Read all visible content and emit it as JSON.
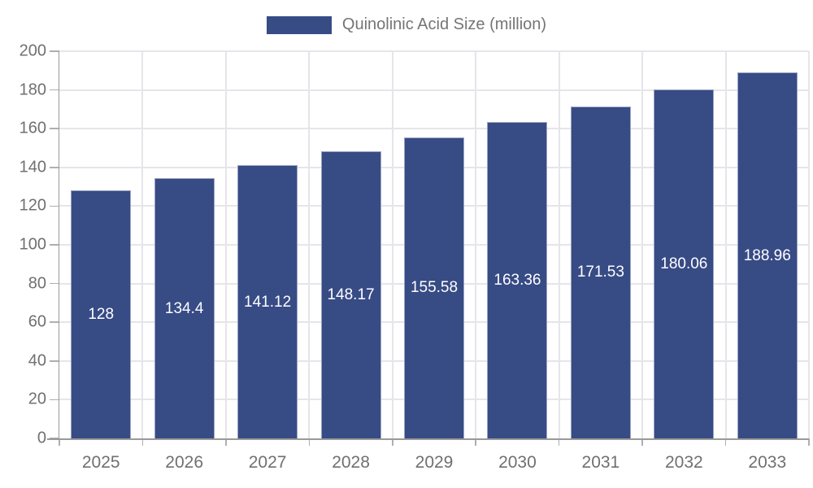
{
  "chart_data": {
    "type": "bar",
    "title": "",
    "xlabel": "",
    "ylabel": "",
    "legend_position": "top-center",
    "grid": true,
    "categories": [
      "2025",
      "2026",
      "2027",
      "2028",
      "2029",
      "2030",
      "2031",
      "2032",
      "2033"
    ],
    "series": [
      {
        "name": "Quinolinic Acid Size (million)",
        "values": [
          128,
          134.4,
          141.12,
          148.17,
          155.58,
          163.36,
          171.53,
          180.06,
          188.96
        ],
        "value_labels": [
          "128",
          "134.4",
          "141.12",
          "148.17",
          "155.58",
          "163.36",
          "171.53",
          "180.06",
          "188.96"
        ]
      }
    ],
    "ylim": [
      0,
      200
    ],
    "yticks": [
      0,
      20,
      40,
      60,
      80,
      100,
      120,
      140,
      160,
      180,
      200
    ],
    "colors": {
      "bar_fill": "#374B85",
      "bar_edge": "rgba(255,255,255,0.5)",
      "value_label_text": "#FFFFFF",
      "grid_line": "#E5E5EA",
      "axis_line": "#9A9A9A",
      "tick_line": "#AFAFAF",
      "axis_label_text": "#707070",
      "legend_text": "#757575",
      "background": "#FFFFFF"
    }
  }
}
